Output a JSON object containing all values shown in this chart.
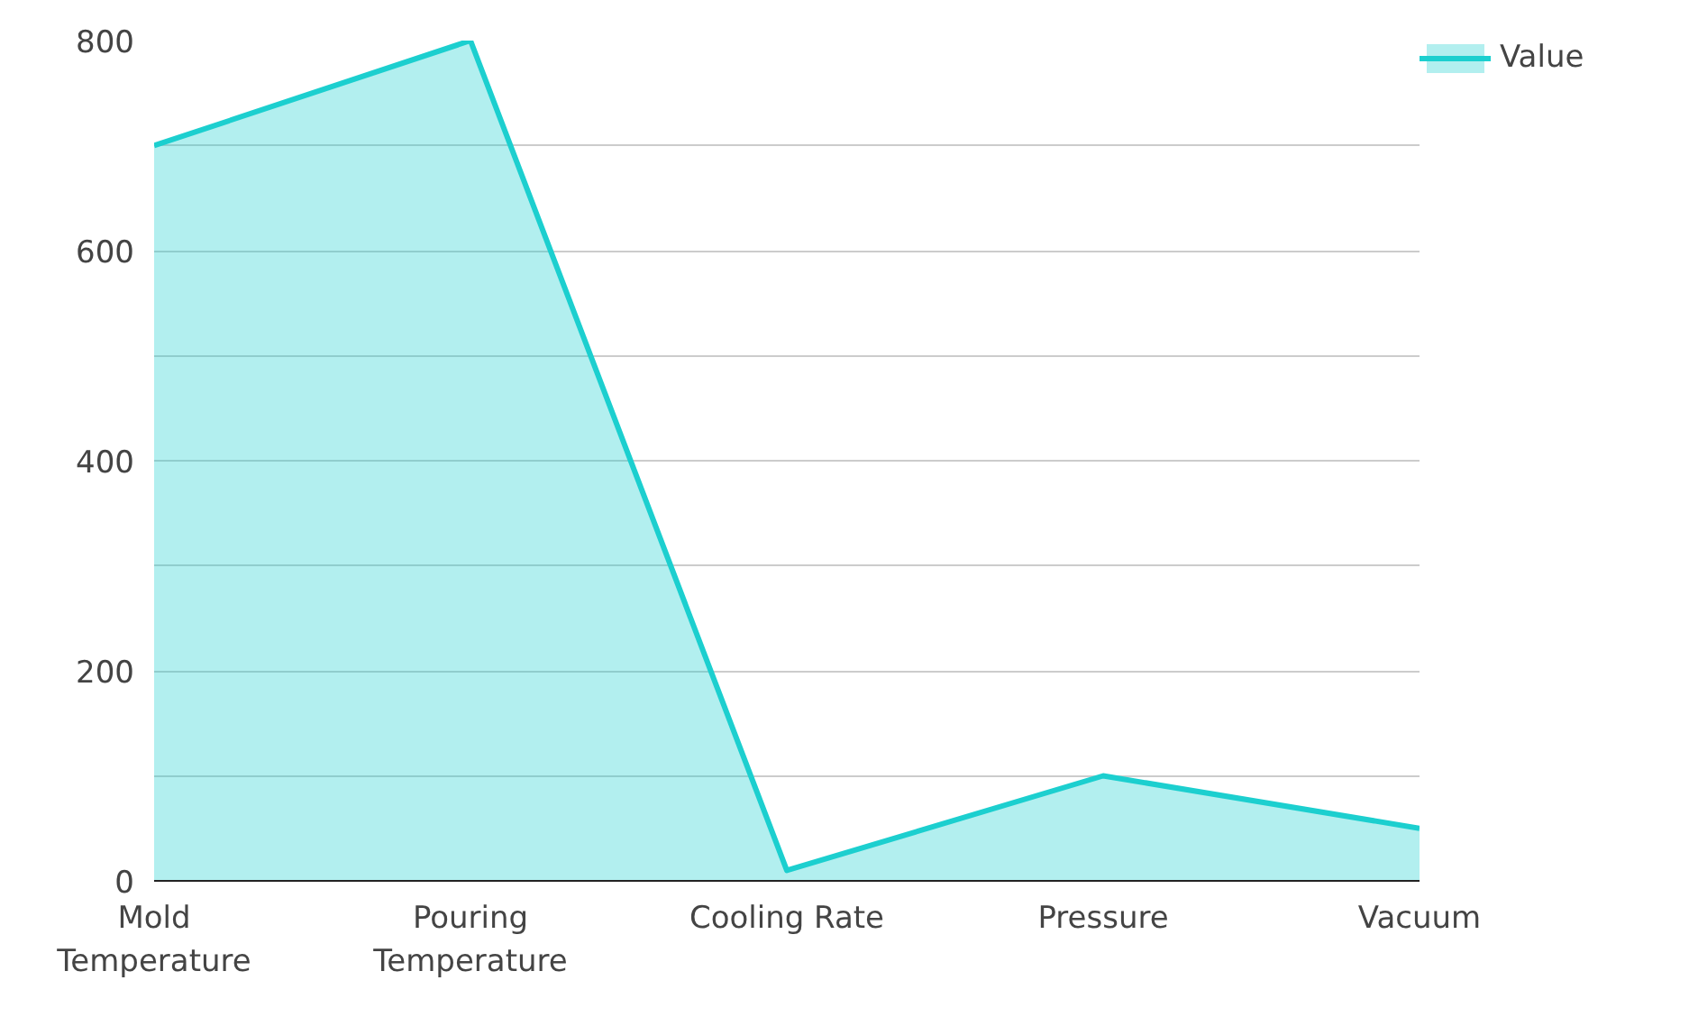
{
  "chart_data": {
    "type": "area",
    "categories": [
      "Mold Temperature",
      "Pouring Temperature",
      "Cooling Rate",
      "Pressure",
      "Vacuum"
    ],
    "series": [
      {
        "name": "Value",
        "color": "#1ccfcf",
        "values": [
          700,
          800,
          10,
          100,
          50
        ]
      }
    ],
    "ylim": [
      0,
      800
    ],
    "yticks": [
      0,
      {
        "value": 100,
        "label": null
      },
      200,
      {
        "value": 300,
        "label": null
      },
      400,
      {
        "value": 500,
        "label": null
      },
      600,
      {
        "value": 700,
        "label": null
      },
      800
    ],
    "grid": "y",
    "legend": "top right"
  }
}
